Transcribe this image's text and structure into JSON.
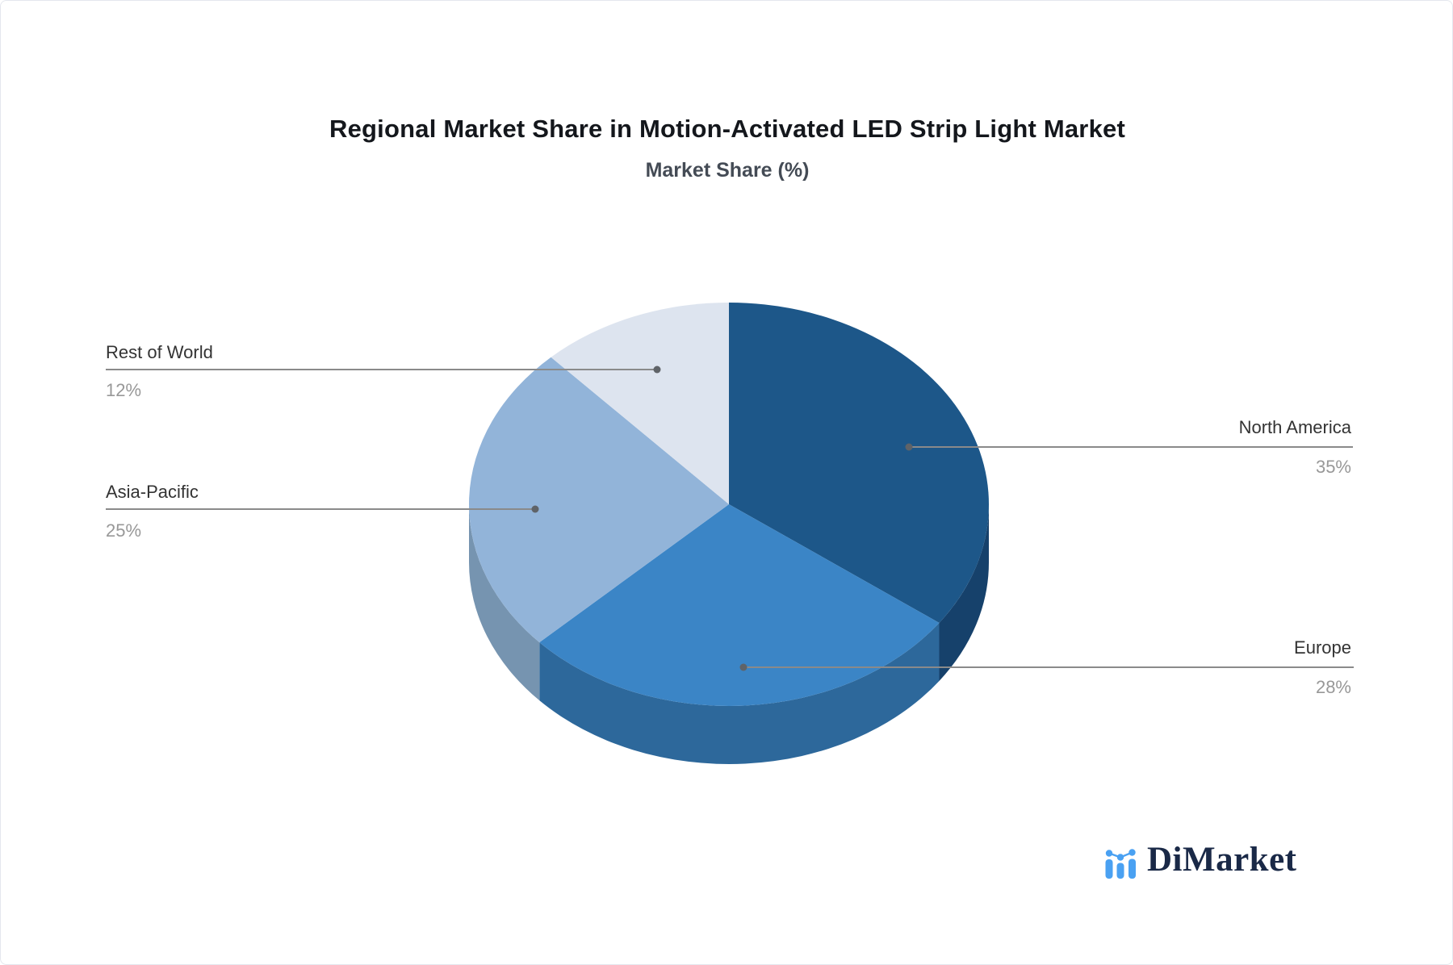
{
  "title": "Regional Market Share in Motion-Activated LED Strip Light Market",
  "subtitle": "Market Share (%)",
  "chart_data": {
    "type": "pie",
    "style_3d": true,
    "start_angle": "12-o'clock",
    "direction": "clockwise",
    "title": "Regional Market Share in Motion-Activated LED Strip Light Market",
    "subtitle": "Market Share (%)",
    "slices": [
      {
        "label": "North America",
        "value": 35,
        "display": "35%",
        "color": "#1d5789",
        "side_color": "#16416b",
        "label_side": "right"
      },
      {
        "label": "Europe",
        "value": 28,
        "display": "28%",
        "color": "#3b85c6",
        "side_color": "#2d689b",
        "label_side": "right"
      },
      {
        "label": "Asia-Pacific",
        "value": 25,
        "display": "25%",
        "color": "#92b4d9",
        "side_color": "#7694b0",
        "label_side": "left"
      },
      {
        "label": "Rest of World",
        "value": 12,
        "display": "12%",
        "color": "#dde4ef",
        "side_color": "#c5cedd",
        "label_side": "left"
      }
    ],
    "leader_line_color": "#8a8a8a",
    "leader_dot_color": "#5f6368",
    "label_text_color": "#333333",
    "percent_text_color": "#989898"
  },
  "logo": {
    "text": "DiMarket",
    "icon": "bar-chart-with-trend-dots-icon",
    "icon_color": "#4aa1f2",
    "text_color": "#1a2947"
  }
}
